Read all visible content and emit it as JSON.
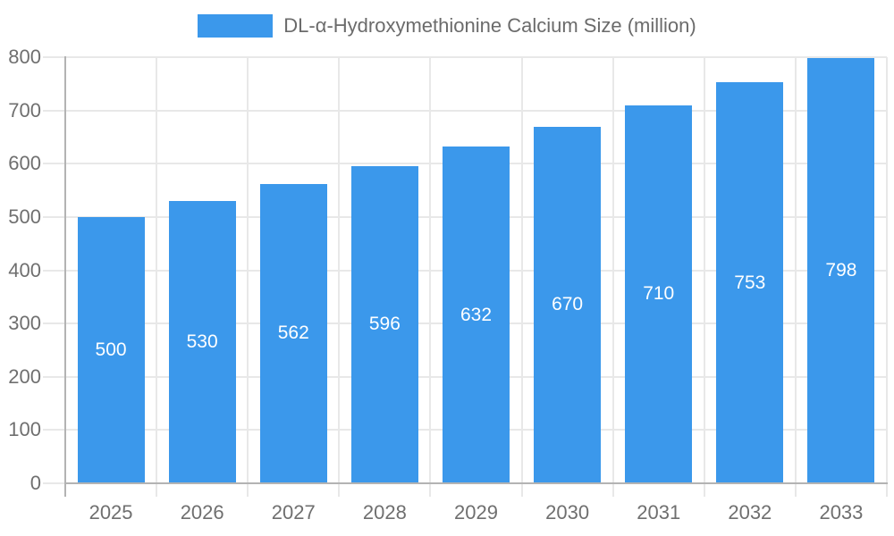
{
  "chart_data": {
    "type": "bar",
    "title": "DL-α-Hydroxymethionine Calcium Size (million)",
    "legend_position": "top",
    "categories": [
      "2025",
      "2026",
      "2027",
      "2028",
      "2029",
      "2030",
      "2031",
      "2032",
      "2033"
    ],
    "series": [
      {
        "name": "DL-α-Hydroxymethionine Calcium Size (million)",
        "values": [
          500,
          530,
          562,
          596,
          632,
          670,
          710,
          753,
          798
        ]
      }
    ],
    "xlabel": "",
    "ylabel": "",
    "ylim": [
      0,
      800
    ],
    "yticks": [
      0,
      100,
      200,
      300,
      400,
      500,
      600,
      700,
      800
    ],
    "grid": true,
    "data_labels_inside_bars": true,
    "colors": {
      "bar": "#3B98EB",
      "bar_label": "#FFFFFF",
      "axis_text": "#6F6F6F",
      "legend_text": "#6B6B6B",
      "grid_line": "#E8E8E8",
      "axis_line": "#B3B3B3",
      "background": "#FFFFFF"
    }
  }
}
